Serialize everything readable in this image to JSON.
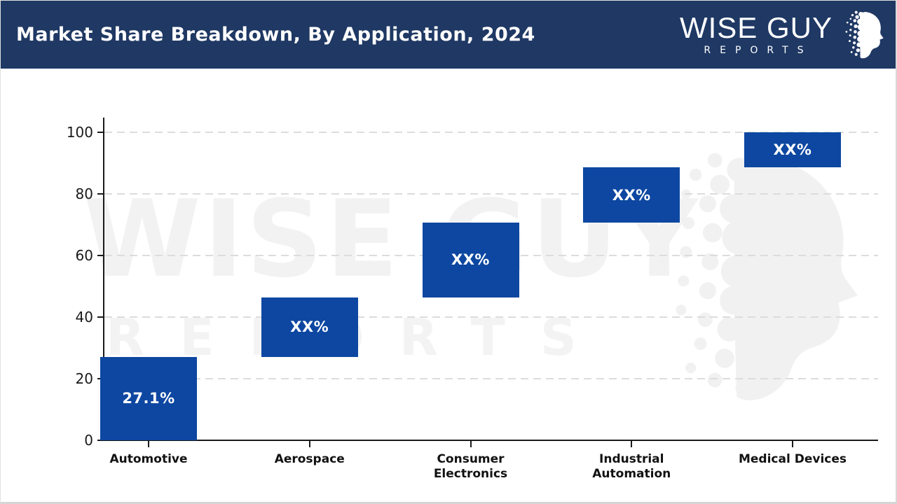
{
  "header": {
    "logo": {
      "line1": "WISE GUY",
      "line2": "REPORTS"
    }
  },
  "watermark": {
    "line1": "WISE GUY",
    "line2": "REPORTS"
  },
  "colors": {
    "header_bg": "#1f3864",
    "bar_blue": "#0d47a1",
    "grid_gray": "#dcdcdc",
    "axis_black": "#1a1a1a",
    "watermark_gray": "#f2f2f2"
  },
  "chart_data": {
    "type": "bar",
    "subtype": "waterfall",
    "title": "Market Share Breakdown, By Application, 2024",
    "categories": [
      "Automotive",
      "Aerospace",
      "Consumer Electronics",
      "Industrial Automation",
      "Medical Devices"
    ],
    "segments": [
      {
        "category": "Automotive",
        "start": 0,
        "end": 27.1,
        "label": "27.1%"
      },
      {
        "category": "Aerospace",
        "start": 27.1,
        "end": 46.4,
        "label": "XX%"
      },
      {
        "category": "Consumer Electronics",
        "start": 46.4,
        "end": 70.7,
        "label": "XX%"
      },
      {
        "category": "Industrial Automation",
        "start": 70.7,
        "end": 88.6,
        "label": "XX%"
      },
      {
        "category": "Medical Devices",
        "start": 88.6,
        "end": 100.0,
        "label": "XX%"
      }
    ],
    "xlabel": "",
    "ylabel": "",
    "ylim": [
      0,
      100
    ],
    "yticks": [
      0,
      20,
      40,
      60,
      80,
      100
    ],
    "grid": "horizontal-dashed",
    "legend": "none",
    "bar_color": "#0d47a1",
    "bar_label_color": "#ffffff"
  }
}
